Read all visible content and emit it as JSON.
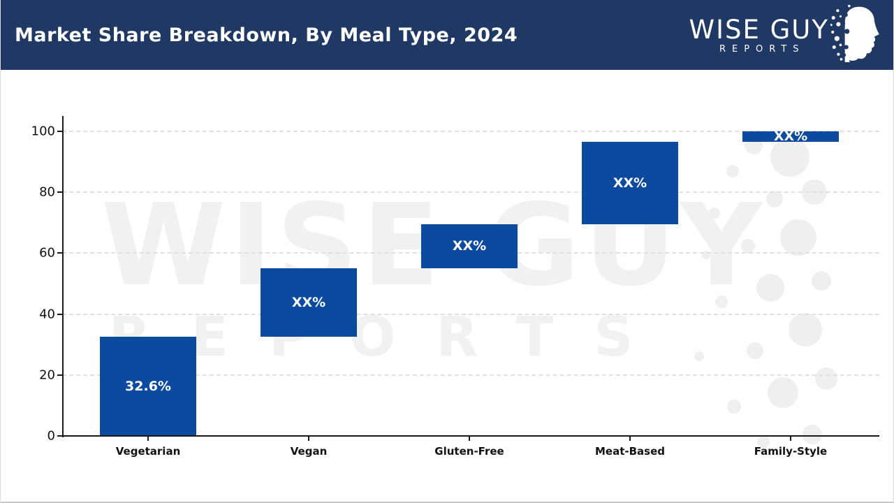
{
  "header": {
    "title": "Market Share Breakdown, By Meal Type, 2024",
    "logo": {
      "line1": "WISE GUY",
      "line2": "REPORTS"
    }
  },
  "watermark": {
    "line1": "WISE GUY",
    "line2": "REPORTS"
  },
  "colors": {
    "header_bg": "#1f3864",
    "header_text": "#ffffff",
    "bar": "#0b4a9f",
    "bar_label": "#ffffff",
    "axis": "#1a1a1a",
    "gridline": "#e0e0e0",
    "watermark": "#f1f1f1",
    "watermark_dots": "#efefef"
  },
  "chart_data": {
    "type": "bar",
    "subtype": "waterfall",
    "title": "Market Share Breakdown, By Meal Type, 2024",
    "categories": [
      "Vegetarian",
      "Vegan",
      "Gluten-Free",
      "Meat-Based",
      "Family-Style"
    ],
    "segments": [
      {
        "category": "Vegetarian",
        "start": 0,
        "end": 32.6,
        "value": 32.6,
        "label": "32.6%"
      },
      {
        "category": "Vegan",
        "start": 32.6,
        "end": 55.0,
        "value": 22.4,
        "label": "XX%"
      },
      {
        "category": "Gluten-Free",
        "start": 55.0,
        "end": 69.6,
        "value": 14.6,
        "label": "XX%"
      },
      {
        "category": "Meat-Based",
        "start": 69.6,
        "end": 96.6,
        "value": 27.0,
        "label": "XX%"
      },
      {
        "category": "Family-Style",
        "start": 96.6,
        "end": 100.0,
        "value": 3.4,
        "label": "XX%"
      }
    ],
    "yticks": [
      0,
      20,
      40,
      60,
      80,
      100
    ],
    "ylim": [
      0,
      105
    ],
    "xlabel": "",
    "ylabel": "",
    "grid": "horizontal-dashed",
    "legend": "none"
  }
}
